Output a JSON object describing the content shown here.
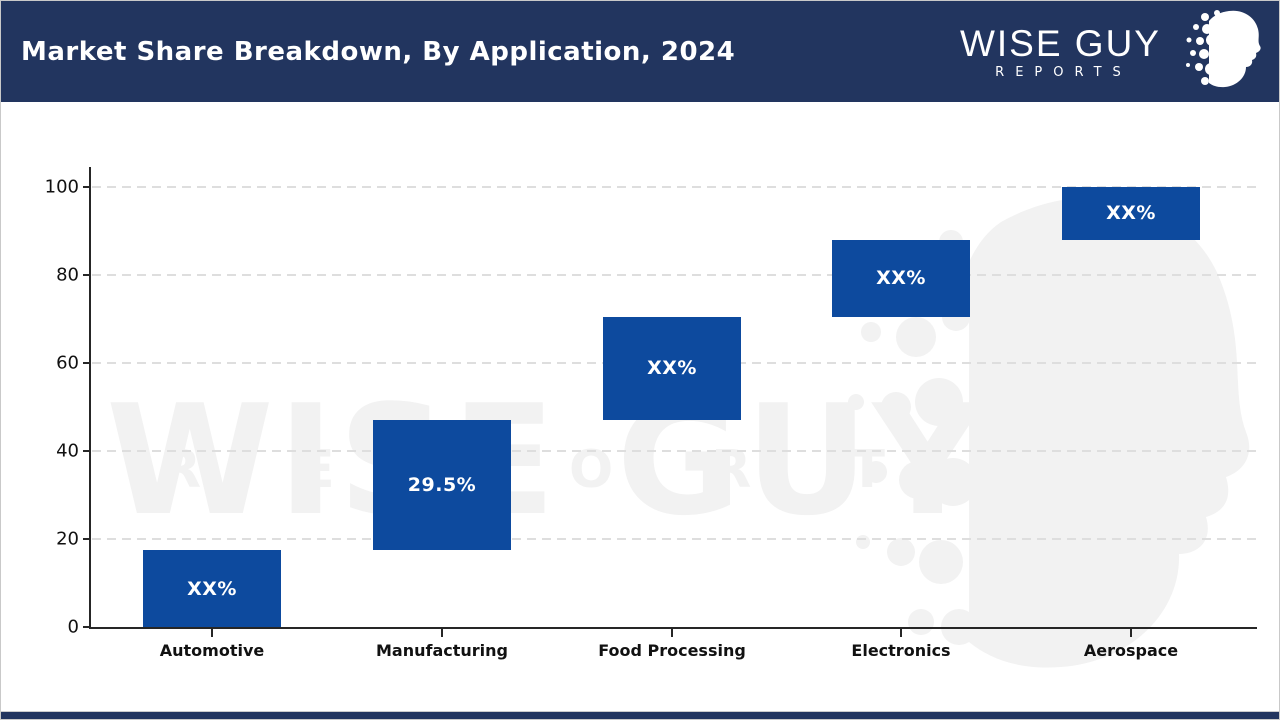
{
  "header": {
    "title": "Market Share Breakdown, By Application, 2024",
    "logo": {
      "line1": "WISE GUY",
      "line2": "REPORTS"
    }
  },
  "watermark": {
    "line1": "WISE GUY",
    "line2": "R E P O R T S"
  },
  "colors": {
    "header_bg": "#22355f",
    "footer_bg": "#22355f",
    "bar": "#0d4a9e",
    "grid": "#dedede",
    "axis": "#262626",
    "watermark": "#f2f2f2",
    "bar_label": "#ffffff",
    "tick_label": "#111111"
  },
  "chart_data": {
    "type": "bar",
    "subtype": "waterfall",
    "title": "Market Share Breakdown, By Application, 2024",
    "categories": [
      "Automotive",
      "Manufacturing",
      "Food Processing",
      "Electronics",
      "Aerospace"
    ],
    "segments": [
      {
        "category": "Automotive",
        "start": 0,
        "end": 17.5,
        "value": 17.5,
        "label": "XX%"
      },
      {
        "category": "Manufacturing",
        "start": 17.5,
        "end": 47,
        "value": 29.5,
        "label": "29.5%"
      },
      {
        "category": "Food Processing",
        "start": 47,
        "end": 70.5,
        "value": 23.5,
        "label": "XX%"
      },
      {
        "category": "Electronics",
        "start": 70.5,
        "end": 88,
        "value": 17.5,
        "label": "XX%"
      },
      {
        "category": "Aerospace",
        "start": 88,
        "end": 100,
        "value": 12,
        "label": "XX%"
      }
    ],
    "ylim": [
      0,
      100
    ],
    "yticks": [
      0,
      20,
      40,
      60,
      80,
      100
    ],
    "xlabel": "",
    "ylabel": "",
    "grid": "horizontal-dashed",
    "legend": null
  }
}
